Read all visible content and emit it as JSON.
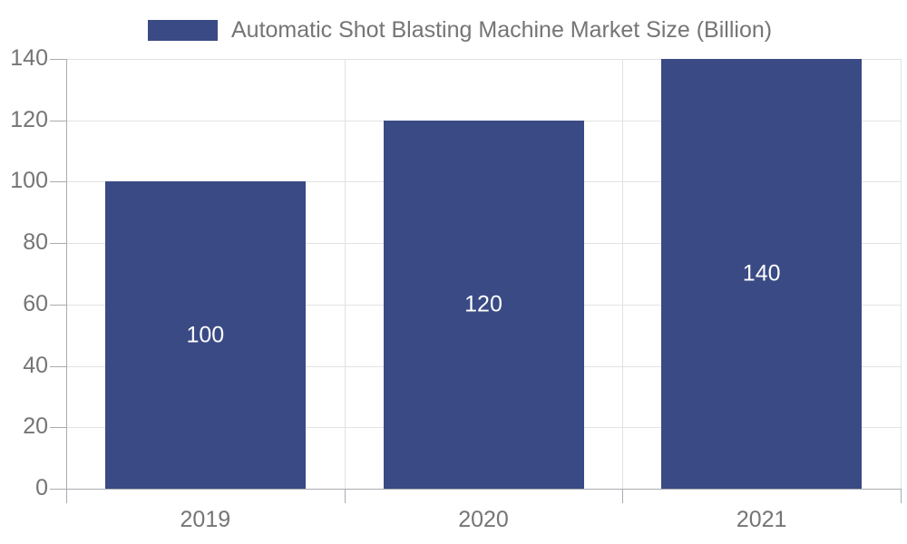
{
  "legend": {
    "label": "Automatic Shot Blasting Machine Market Size (Billion)"
  },
  "chart_data": {
    "type": "bar",
    "title": "Automatic Shot Blasting Machine Market Size (Billion)",
    "categories": [
      "2019",
      "2020",
      "2021"
    ],
    "series": [
      {
        "name": "Automatic Shot Blasting Machine Market Size (Billion)",
        "values": [
          100,
          120,
          140
        ]
      }
    ],
    "values": [
      100,
      120,
      140
    ],
    "data_labels": [
      "100",
      "120",
      "140"
    ],
    "xlabel": "",
    "ylabel": "",
    "ylim": [
      0,
      140
    ],
    "yticks": [
      0,
      20,
      40,
      60,
      80,
      100,
      120,
      140
    ],
    "grid": true,
    "legend_position": "top-center",
    "colors": {
      "bar": "#3A4A84",
      "data_label": "#FFFFFF",
      "axis": "#A9ABB0",
      "gridline": "#E2E2E2",
      "text": "#757575",
      "background": "#FFFFFF"
    }
  }
}
